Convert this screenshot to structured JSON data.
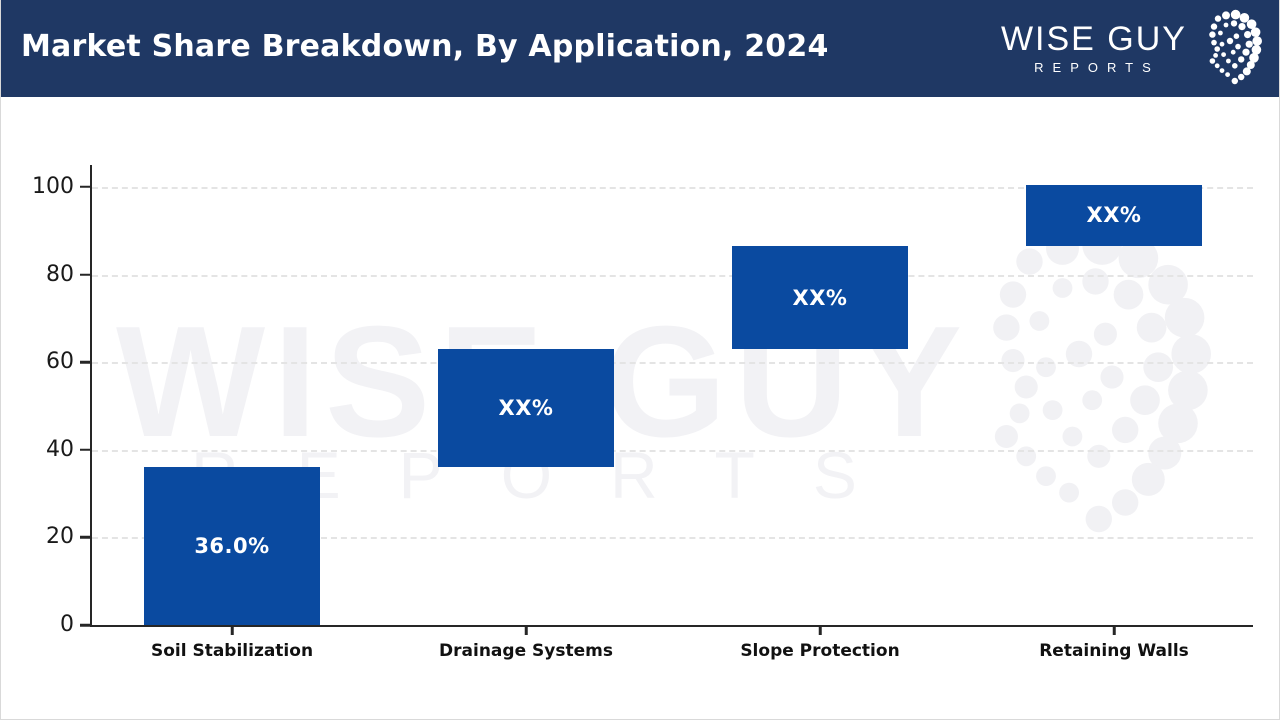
{
  "header": {
    "title": "Market Share Breakdown, By Application, 2024",
    "bg_color": "#1f3864",
    "logo": {
      "name": "WISE GUY",
      "sub": "REPORTS"
    }
  },
  "watermark": {
    "line1": "WISE GUY",
    "line2": "REPORTS"
  },
  "chart_data": {
    "type": "bar",
    "variant": "floating_segment_waterfall",
    "title": "Market Share Breakdown, By Application, 2024",
    "categories": [
      "Soil Stabilization",
      "Drainage Systems",
      "Slope Protection",
      "Retaining Walls"
    ],
    "segments": [
      {
        "category": "Soil Stabilization",
        "start": 0,
        "end": 36,
        "label": "36.0%"
      },
      {
        "category": "Drainage Systems",
        "start": 36,
        "end": 63,
        "label": "XX%"
      },
      {
        "category": "Slope Protection",
        "start": 63,
        "end": 86.5,
        "label": "XX%"
      },
      {
        "category": "Retaining Walls",
        "start": 86.5,
        "end": 100.5,
        "label": "XX%"
      }
    ],
    "y_ticks": [
      0,
      20,
      40,
      60,
      80,
      100
    ],
    "ylim": [
      0,
      105
    ],
    "grid": "horizontal dashed",
    "legend": "none",
    "bar_color": "#0a4aa0",
    "bar_label_color": "#ffffff",
    "axis_color": "#262626"
  }
}
